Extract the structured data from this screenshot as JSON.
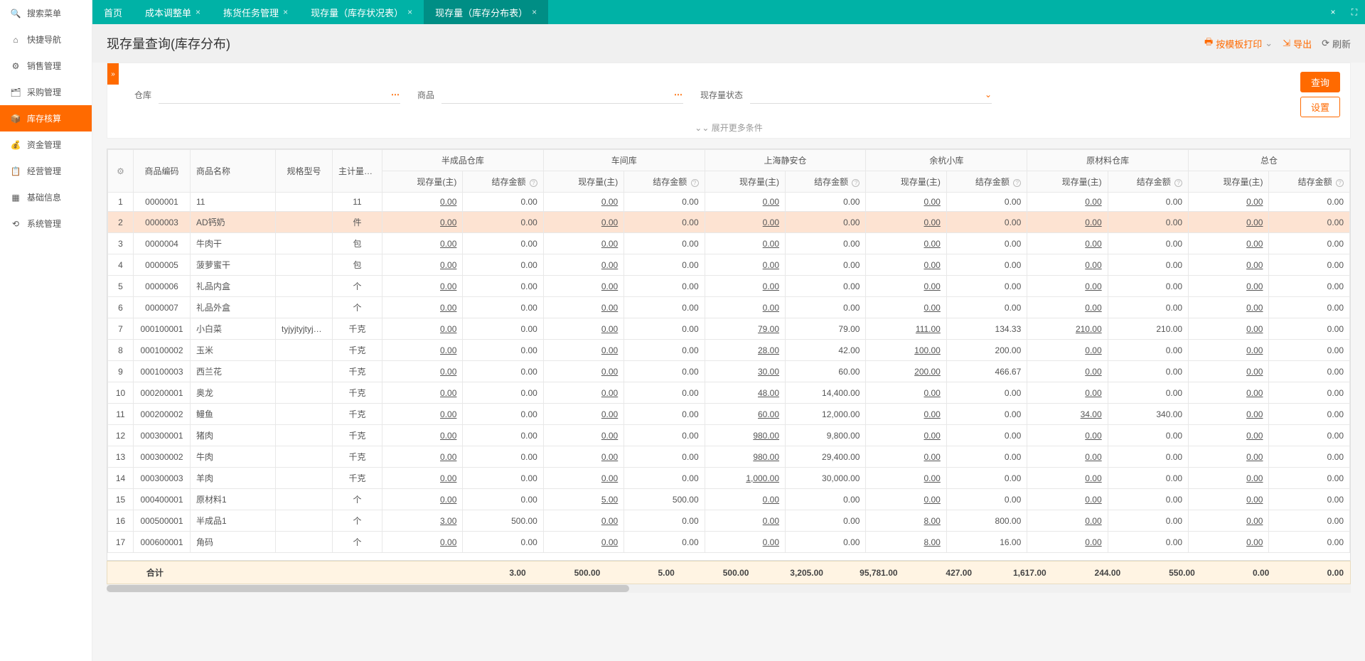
{
  "sidebar": {
    "items": [
      {
        "label": "搜索菜单",
        "icon": "🔍"
      },
      {
        "label": "快捷导航",
        "icon": "⌂"
      },
      {
        "label": "销售管理",
        "icon": "⚙"
      },
      {
        "label": "采购管理",
        "icon": "🗂"
      },
      {
        "label": "库存核算",
        "icon": "📦",
        "active": true
      },
      {
        "label": "资金管理",
        "icon": "💰"
      },
      {
        "label": "经营管理",
        "icon": "📋"
      },
      {
        "label": "基础信息",
        "icon": "▦"
      },
      {
        "label": "系统管理",
        "icon": "⟲"
      }
    ]
  },
  "tabs": [
    {
      "label": "首页",
      "closable": false,
      "active": false
    },
    {
      "label": "成本调整单",
      "closable": true,
      "active": false
    },
    {
      "label": "拣货任务管理",
      "closable": true,
      "active": false
    },
    {
      "label": "现存量（库存状况表）",
      "closable": true,
      "active": false
    },
    {
      "label": "现存量（库存分布表）",
      "closable": true,
      "active": true
    }
  ],
  "page": {
    "title": "现存量查询(库存分布)"
  },
  "actions": {
    "print": "按模板打印",
    "export": "导出",
    "refresh": "刷新"
  },
  "filters": {
    "warehouse_label": "仓库",
    "product_label": "商品",
    "status_label": "现存量状态",
    "query_btn": "查询",
    "settings_btn": "设置",
    "expand_text": "展开更多条件"
  },
  "table": {
    "group_headers": [
      "半成品仓库",
      "车间库",
      "上海静安仓",
      "余杭小库",
      "原材料仓库",
      "总仓"
    ],
    "fixed_headers": {
      "idx": "",
      "code": "商品编码",
      "name": "商品名称",
      "spec": "规格型号",
      "unit": "主计量单位",
      "qty": "现存量(主)",
      "amt": "结存金额"
    },
    "rows": [
      {
        "idx": 1,
        "code": "0000001",
        "name": "11",
        "spec": "",
        "unit": "11",
        "cells": [
          "0.00",
          "0.00",
          "0.00",
          "0.00",
          "0.00",
          "0.00",
          "0.00",
          "0.00",
          "0.00",
          "0.00",
          "0.00",
          "0.00"
        ]
      },
      {
        "idx": 2,
        "code": "0000003",
        "name": "AD钙奶",
        "spec": "",
        "unit": "件",
        "highlight": true,
        "cells": [
          "0.00",
          "0.00",
          "0.00",
          "0.00",
          "0.00",
          "0.00",
          "0.00",
          "0.00",
          "0.00",
          "0.00",
          "0.00",
          "0.00"
        ]
      },
      {
        "idx": 3,
        "code": "0000004",
        "name": "牛肉干",
        "spec": "",
        "unit": "包",
        "cells": [
          "0.00",
          "0.00",
          "0.00",
          "0.00",
          "0.00",
          "0.00",
          "0.00",
          "0.00",
          "0.00",
          "0.00",
          "0.00",
          "0.00"
        ]
      },
      {
        "idx": 4,
        "code": "0000005",
        "name": "菠萝蜜干",
        "spec": "",
        "unit": "包",
        "cells": [
          "0.00",
          "0.00",
          "0.00",
          "0.00",
          "0.00",
          "0.00",
          "0.00",
          "0.00",
          "0.00",
          "0.00",
          "0.00",
          "0.00"
        ]
      },
      {
        "idx": 5,
        "code": "0000006",
        "name": "礼品内盒",
        "spec": "",
        "unit": "个",
        "cells": [
          "0.00",
          "0.00",
          "0.00",
          "0.00",
          "0.00",
          "0.00",
          "0.00",
          "0.00",
          "0.00",
          "0.00",
          "0.00",
          "0.00"
        ]
      },
      {
        "idx": 6,
        "code": "0000007",
        "name": "礼品外盒",
        "spec": "",
        "unit": "个",
        "cells": [
          "0.00",
          "0.00",
          "0.00",
          "0.00",
          "0.00",
          "0.00",
          "0.00",
          "0.00",
          "0.00",
          "0.00",
          "0.00",
          "0.00"
        ]
      },
      {
        "idx": 7,
        "code": "000100001",
        "name": "小白菜",
        "spec": "tyjyjtyjtyjdf...",
        "unit": "千克",
        "cells": [
          "0.00",
          "0.00",
          "0.00",
          "0.00",
          "79.00",
          "79.00",
          "111.00",
          "134.33",
          "210.00",
          "210.00",
          "0.00",
          "0.00"
        ]
      },
      {
        "idx": 8,
        "code": "000100002",
        "name": "玉米",
        "spec": "",
        "unit": "千克",
        "cells": [
          "0.00",
          "0.00",
          "0.00",
          "0.00",
          "28.00",
          "42.00",
          "100.00",
          "200.00",
          "0.00",
          "0.00",
          "0.00",
          "0.00"
        ]
      },
      {
        "idx": 9,
        "code": "000100003",
        "name": "西兰花",
        "spec": "",
        "unit": "千克",
        "cells": [
          "0.00",
          "0.00",
          "0.00",
          "0.00",
          "30.00",
          "60.00",
          "200.00",
          "466.67",
          "0.00",
          "0.00",
          "0.00",
          "0.00"
        ]
      },
      {
        "idx": 10,
        "code": "000200001",
        "name": "奥龙",
        "spec": "",
        "unit": "千克",
        "cells": [
          "0.00",
          "0.00",
          "0.00",
          "0.00",
          "48.00",
          "14,400.00",
          "0.00",
          "0.00",
          "0.00",
          "0.00",
          "0.00",
          "0.00"
        ]
      },
      {
        "idx": 11,
        "code": "000200002",
        "name": "鳗鱼",
        "spec": "",
        "unit": "千克",
        "cells": [
          "0.00",
          "0.00",
          "0.00",
          "0.00",
          "60.00",
          "12,000.00",
          "0.00",
          "0.00",
          "34.00",
          "340.00",
          "0.00",
          "0.00"
        ]
      },
      {
        "idx": 12,
        "code": "000300001",
        "name": "猪肉",
        "spec": "",
        "unit": "千克",
        "cells": [
          "0.00",
          "0.00",
          "0.00",
          "0.00",
          "980.00",
          "9,800.00",
          "0.00",
          "0.00",
          "0.00",
          "0.00",
          "0.00",
          "0.00"
        ]
      },
      {
        "idx": 13,
        "code": "000300002",
        "name": "牛肉",
        "spec": "",
        "unit": "千克",
        "cells": [
          "0.00",
          "0.00",
          "0.00",
          "0.00",
          "980.00",
          "29,400.00",
          "0.00",
          "0.00",
          "0.00",
          "0.00",
          "0.00",
          "0.00"
        ]
      },
      {
        "idx": 14,
        "code": "000300003",
        "name": "羊肉",
        "spec": "",
        "unit": "千克",
        "cells": [
          "0.00",
          "0.00",
          "0.00",
          "0.00",
          "1,000.00",
          "30,000.00",
          "0.00",
          "0.00",
          "0.00",
          "0.00",
          "0.00",
          "0.00"
        ]
      },
      {
        "idx": 15,
        "code": "000400001",
        "name": "原材料1",
        "spec": "",
        "unit": "个",
        "cells": [
          "0.00",
          "0.00",
          "5.00",
          "500.00",
          "0.00",
          "0.00",
          "0.00",
          "0.00",
          "0.00",
          "0.00",
          "0.00",
          "0.00"
        ]
      },
      {
        "idx": 16,
        "code": "000500001",
        "name": "半成品1",
        "spec": "",
        "unit": "个",
        "cells": [
          "3.00",
          "500.00",
          "0.00",
          "0.00",
          "0.00",
          "0.00",
          "8.00",
          "800.00",
          "0.00",
          "0.00",
          "0.00",
          "0.00"
        ]
      },
      {
        "idx": 17,
        "code": "000600001",
        "name": "角码",
        "spec": "",
        "unit": "个",
        "cells": [
          "0.00",
          "0.00",
          "0.00",
          "0.00",
          "0.00",
          "0.00",
          "8.00",
          "16.00",
          "0.00",
          "0.00",
          "0.00",
          "0.00"
        ]
      }
    ],
    "totals": {
      "label": "合计",
      "cells": [
        "3.00",
        "500.00",
        "5.00",
        "500.00",
        "3,205.00",
        "95,781.00",
        "427.00",
        "1,617.00",
        "244.00",
        "550.00",
        "0.00",
        "0.00"
      ]
    }
  },
  "colors": {
    "primary": "#ff6a00",
    "teal": "#00b2a6",
    "teal_dark": "#008e85",
    "highlight_row": "#fde3d2",
    "totals_bg": "#fff4e3"
  }
}
